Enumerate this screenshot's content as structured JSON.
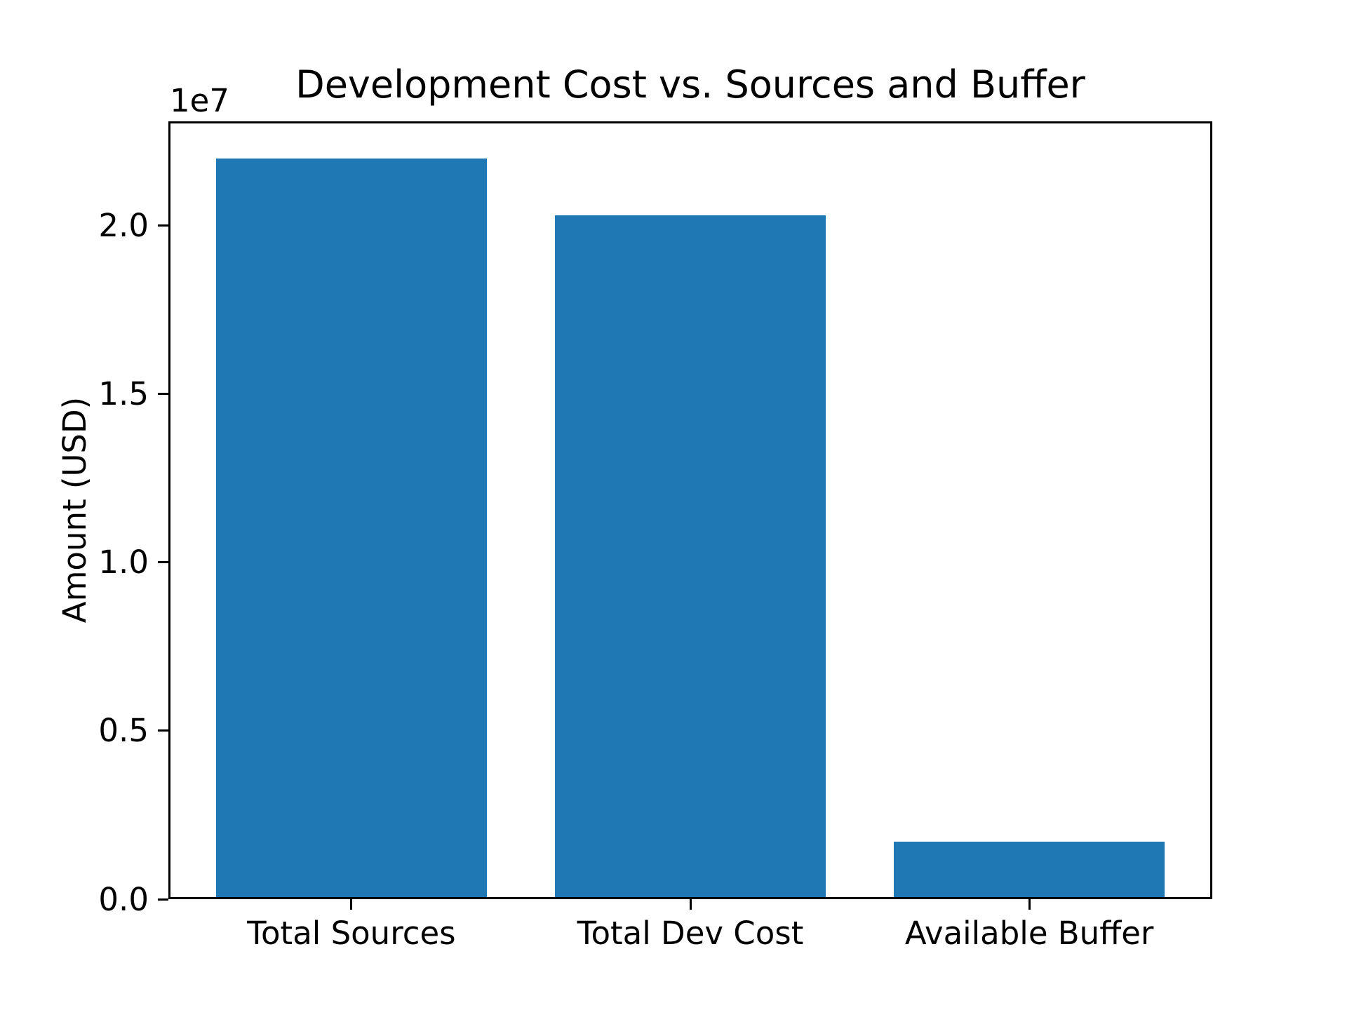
{
  "chart_data": {
    "type": "bar",
    "title": "Development Cost vs. Sources and Buffer",
    "ylabel": "Amount (USD)",
    "xlabel": "",
    "y_offset_text": "1e7",
    "categories": [
      "Total Sources",
      "Total Dev Cost",
      "Available Buffer"
    ],
    "values": [
      22000000,
      20300000,
      1700000
    ],
    "ylim": [
      0,
      23100000
    ],
    "yticks": [
      0,
      5000000,
      10000000,
      15000000,
      20000000
    ],
    "ytick_labels": [
      "0.0",
      "0.5",
      "1.0",
      "1.5",
      "2.0"
    ],
    "bar_color": "#1f77b4",
    "bar_width_fraction": 0.8,
    "grid": false,
    "legend": false
  }
}
